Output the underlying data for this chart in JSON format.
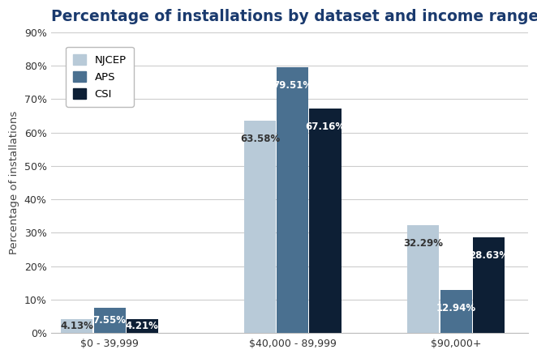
{
  "title": "Percentage of installations by dataset and income range",
  "ylabel": "Percentage of installations",
  "categories": [
    "$0 - 39,999",
    "$40,000 - 89,999",
    "$90,000+"
  ],
  "series": {
    "NJCEP": [
      4.13,
      63.58,
      32.29
    ],
    "APS": [
      7.55,
      79.51,
      12.94
    ],
    "CSI": [
      4.21,
      67.16,
      28.63
    ]
  },
  "colors": {
    "NJCEP": "#b8cad8",
    "APS": "#4a7090",
    "CSI": "#0d1f35"
  },
  "ylim": [
    0,
    90
  ],
  "yticks": [
    0,
    10,
    20,
    30,
    40,
    50,
    60,
    70,
    80,
    90
  ],
  "ytick_labels": [
    "0%",
    "10%",
    "20%",
    "30%",
    "40%",
    "50%",
    "60%",
    "70%",
    "80%",
    "90%"
  ],
  "bar_width": 0.25,
  "label_fontsize": 8.5,
  "title_fontsize": 13.5,
  "title_color": "#1a3a6e",
  "axis_label_fontsize": 9.5,
  "tick_fontsize": 9,
  "legend_fontsize": 9.5,
  "bg_color": "#ffffff",
  "grid_color": "#cccccc"
}
